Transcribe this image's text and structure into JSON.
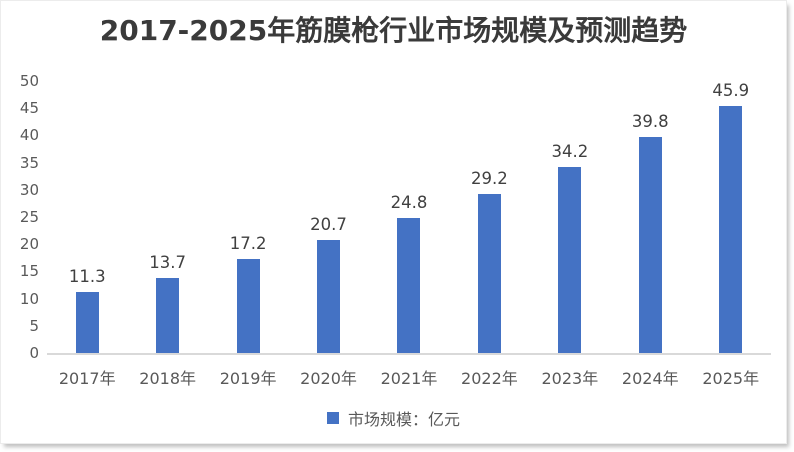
{
  "chart_data": {
    "type": "bar",
    "title": "2017-2025年筋膜枪行业市场规模及预测趋势",
    "categories": [
      "2017年",
      "2018年",
      "2019年",
      "2020年",
      "2021年",
      "2022年",
      "2023年",
      "2024年",
      "2025年"
    ],
    "series": [
      {
        "name": "市场规模：亿元",
        "values": [
          11.3,
          13.7,
          17.2,
          20.7,
          24.8,
          29.2,
          34.2,
          39.8,
          45.9
        ]
      }
    ],
    "xlabel": "",
    "ylabel": "",
    "ylim": [
      0,
      50
    ],
    "ytick_step": 5,
    "yticks": [
      0,
      5,
      10,
      15,
      20,
      25,
      30,
      35,
      40,
      45,
      50
    ],
    "grid": false,
    "data_labels": true,
    "legend_position": "bottom",
    "legend_label": "市场规模：亿元",
    "colors": {
      "bar": "#4472C4",
      "axis_line": "#D9D9D9",
      "tick_label": "#595959",
      "value_label": "#404040",
      "title": "#3A3A3A",
      "background": "#FFFFFF"
    }
  }
}
